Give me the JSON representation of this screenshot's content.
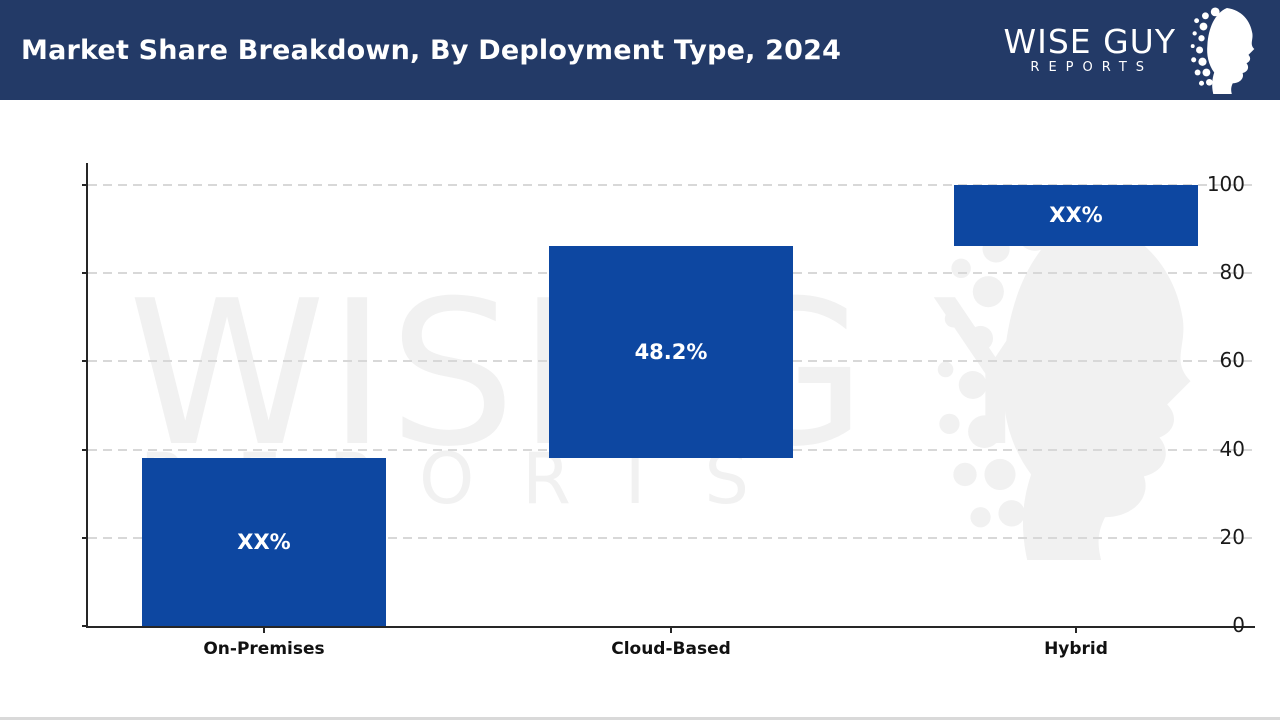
{
  "header": {
    "title": "Market Share Breakdown, By Deployment Type, 2024",
    "logo": {
      "wordmark": "WISE GUY",
      "subtext": "REPORTS"
    }
  },
  "watermark": {
    "line1": "WISE G  Y",
    "line2": "REPORTS"
  },
  "chart_data": {
    "type": "bar",
    "variant": "waterfall",
    "title": "Market Share Breakdown, By Deployment Type, 2024",
    "categories": [
      "On-Premises",
      "Cloud-Based",
      "Hybrid"
    ],
    "bars": [
      {
        "category": "On-Premises",
        "label": "XX%",
        "start": 0,
        "end": 38
      },
      {
        "category": "Cloud-Based",
        "label": "48.2%",
        "start": 38,
        "end": 86.2
      },
      {
        "category": "Hybrid",
        "label": "XX%",
        "start": 86.2,
        "end": 100
      }
    ],
    "yticks": [
      0,
      20,
      40,
      60,
      80,
      100
    ],
    "ylim": [
      0,
      100
    ],
    "grid": "dashed-horizontal",
    "legend": "none",
    "colors": {
      "bar": "#0d47a1",
      "bar_label": "#ffffff",
      "gridline": "#d8d8d8",
      "axis": "#262626",
      "header_bg": "#233a67",
      "watermark": "#f1f1f1"
    }
  }
}
